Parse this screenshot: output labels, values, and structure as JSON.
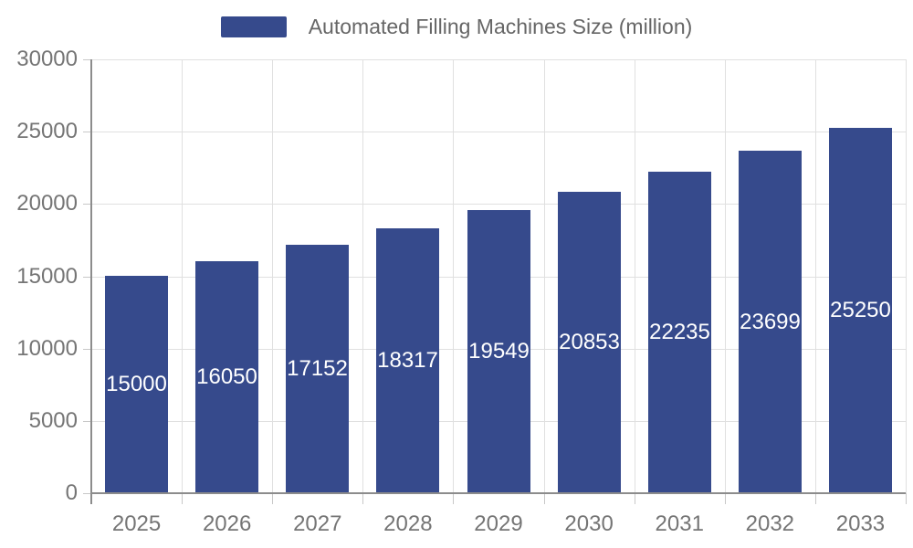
{
  "legend": {
    "label": "Automated Filling Machines Size (million)"
  },
  "chart_data": {
    "type": "bar",
    "title": "Automated Filling Machines Size (million)",
    "categories": [
      "2025",
      "2026",
      "2027",
      "2028",
      "2029",
      "2030",
      "2031",
      "2032",
      "2033"
    ],
    "values": [
      15000,
      16050,
      17152,
      18317,
      19549,
      20853,
      22235,
      23699,
      25250
    ],
    "series": [
      {
        "name": "Automated Filling Machines Size (million)",
        "values": [
          15000,
          16050,
          17152,
          18317,
          19549,
          20853,
          22235,
          23699,
          25250
        ]
      }
    ],
    "xlabel": "",
    "ylabel": "",
    "ylim": [
      0,
      30000
    ],
    "yticks": [
      0,
      5000,
      10000,
      15000,
      20000,
      25000,
      30000
    ],
    "grid": true,
    "legend_position": "top",
    "value_labels": "inside-center-white",
    "colors": {
      "bar": "#364A8C",
      "grid": "#E0E0E0",
      "axis": "#8C8C8C",
      "tick": "#C8C8C8",
      "axis_text": "#757575",
      "legend_text": "#666666",
      "bar_label": "#FFFFFF",
      "background": "#FFFFFF"
    }
  }
}
